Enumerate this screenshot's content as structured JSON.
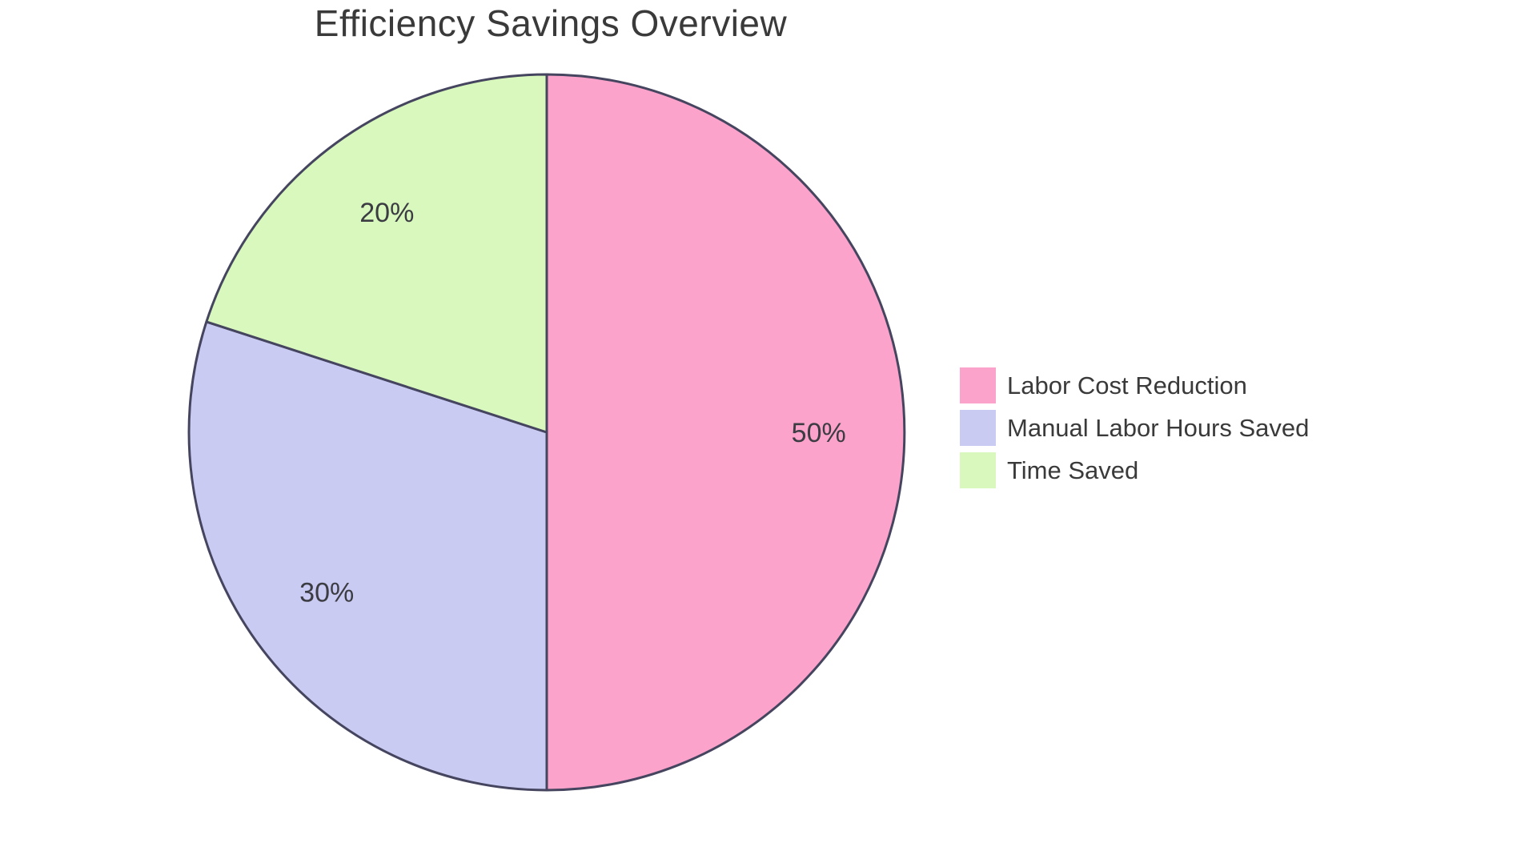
{
  "chart_data": {
    "type": "pie",
    "title": "Efficiency Savings Overview",
    "categories": [
      "Labor Cost Reduction",
      "Manual Labor Hours Saved",
      "Time Saved"
    ],
    "values": [
      50,
      30,
      20
    ],
    "slice_labels": [
      "50%",
      "30%",
      "20%"
    ],
    "colors": [
      "#FCA3CC",
      "#C9CBF3",
      "#D9F8BE"
    ],
    "outline_color": "#45455F",
    "slice_label_color": "#3C3C43",
    "title_color": "#3A3A3A",
    "background": "#FFFFFF",
    "start_angle_deg": 0,
    "direction": "clockwise",
    "legend_position": "right",
    "legend": {
      "entries": [
        {
          "label": "Labor Cost Reduction",
          "color": "#FCA3CC"
        },
        {
          "label": "Manual Labor Hours Saved",
          "color": "#C9CBF3"
        },
        {
          "label": "Time Saved",
          "color": "#D9F8BE"
        }
      ]
    }
  }
}
